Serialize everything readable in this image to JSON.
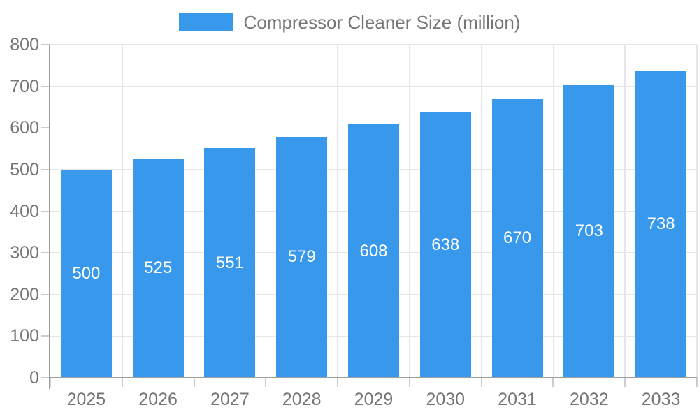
{
  "legend": {
    "label": "Compressor Cleaner Size (million)"
  },
  "colors": {
    "bar": "#3899EC",
    "bar_label": "#FFFFFF",
    "axis_line": "#9E9E9E",
    "tick": "#CCCCCC",
    "gridline": "#E6E6E6",
    "text": "#757575",
    "background": "#FFFFFF"
  },
  "chart_data": {
    "type": "bar",
    "title": "Compressor Cleaner Size (million)",
    "series_name": "Compressor Cleaner Size (million)",
    "categories": [
      "2025",
      "2026",
      "2027",
      "2028",
      "2029",
      "2030",
      "2031",
      "2032",
      "2033"
    ],
    "values": [
      500,
      525,
      551,
      579,
      608,
      638,
      670,
      703,
      738
    ],
    "xlabel": "",
    "ylabel": "",
    "ylim": [
      0,
      800
    ],
    "ytick_step": 100,
    "yticks": [
      0,
      100,
      200,
      300,
      400,
      500,
      600,
      700,
      800
    ],
    "grid": true,
    "legend_position": "top-center",
    "bar_label_position": "inside-center"
  }
}
